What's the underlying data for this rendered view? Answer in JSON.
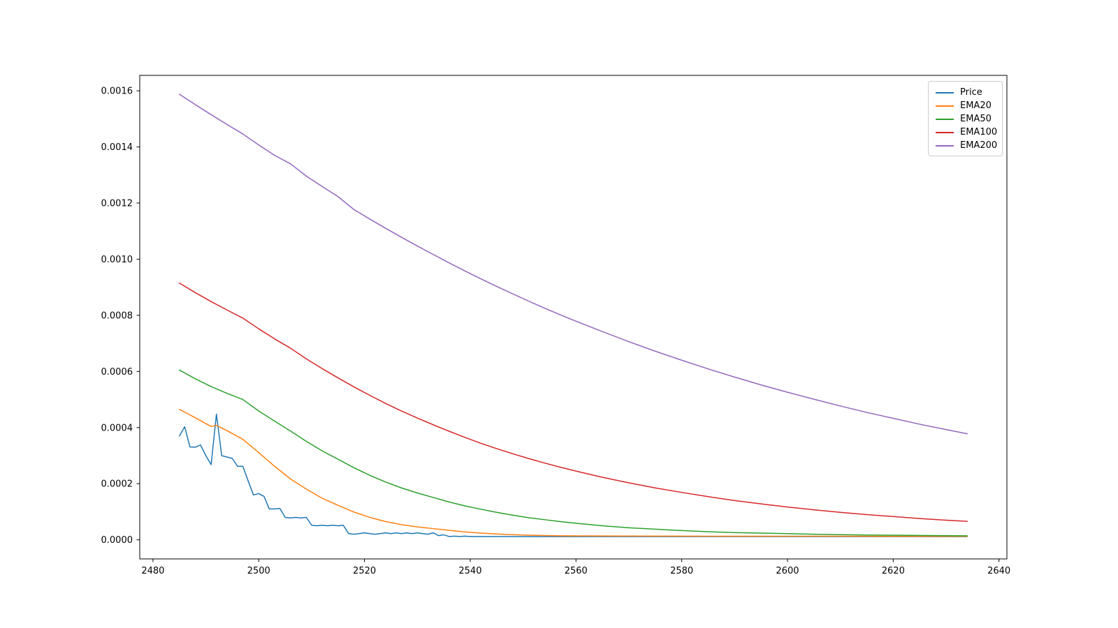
{
  "figure": {
    "background_color": "#ffffff",
    "plot_background_color": "#ffffff",
    "spine_color": "#000000",
    "tick_label_color": "#000000"
  },
  "legend": {
    "position": "upper right",
    "border_color": "#cccccc",
    "background_color": "#ffffff"
  },
  "chart_data": {
    "type": "line",
    "title": "",
    "xlabel": "",
    "ylabel": "",
    "grid": false,
    "legend_position": "upper right",
    "xlim": [
      2477.5,
      2641.5
    ],
    "ylim_micro": [
      -68,
      1655
    ],
    "y_scale": 1e-06,
    "x_ticks": [
      2480,
      2500,
      2520,
      2540,
      2560,
      2580,
      2600,
      2620,
      2640
    ],
    "x_tick_labels": [
      "2480",
      "2500",
      "2520",
      "2540",
      "2560",
      "2580",
      "2600",
      "2620",
      "2640"
    ],
    "y_ticks_micro": [
      0,
      200,
      400,
      600,
      800,
      1000,
      1200,
      1400,
      1600
    ],
    "y_tick_labels": [
      "0.0000",
      "0.0002",
      "0.0004",
      "0.0006",
      "0.0008",
      "0.0010",
      "0.0012",
      "0.0014",
      "0.0016"
    ],
    "line_width": 1.5,
    "series": [
      {
        "name": "Price",
        "color": "#1f77b4",
        "x": [
          2485,
          2486,
          2487,
          2488,
          2489,
          2490,
          2491,
          2492,
          2493,
          2494,
          2495,
          2496,
          2497,
          2498,
          2499,
          2500,
          2501,
          2502,
          2503,
          2504,
          2505,
          2506,
          2507,
          2508,
          2509,
          2510,
          2511,
          2512,
          2513,
          2514,
          2515,
          2516,
          2517,
          2518,
          2519,
          2520,
          2521,
          2522,
          2523,
          2524,
          2525,
          2526,
          2527,
          2528,
          2529,
          2530,
          2531,
          2532,
          2533,
          2534,
          2535,
          2536,
          2537,
          2538,
          2539,
          2540,
          2541,
          2542,
          2543,
          2544,
          2545,
          2550,
          2555,
          2560,
          2570,
          2580,
          2590,
          2600,
          2610,
          2620,
          2630,
          2634
        ],
        "y_micro": [
          370,
          403,
          331,
          330,
          338,
          300,
          268,
          448,
          300,
          295,
          290,
          262,
          262,
          210,
          160,
          165,
          155,
          110,
          110,
          112,
          80,
          78,
          80,
          78,
          80,
          52,
          50,
          52,
          50,
          52,
          50,
          52,
          22,
          20,
          22,
          25,
          22,
          20,
          22,
          25,
          22,
          25,
          22,
          25,
          22,
          25,
          22,
          20,
          25,
          15,
          18,
          12,
          13,
          12,
          13,
          12,
          12,
          12,
          12,
          12,
          12,
          11.5,
          11.5,
          11.5,
          11.5,
          11.5,
          11.5,
          11.5,
          11.5,
          11.5,
          11.5,
          11.5
        ]
      },
      {
        "name": "EMA20",
        "color": "#ff7f0e",
        "x": [
          2485,
          2488,
          2491,
          2492,
          2494,
          2497,
          2500,
          2503,
          2506,
          2509,
          2512,
          2515,
          2518,
          2521,
          2524,
          2527,
          2530,
          2533,
          2536,
          2539,
          2542,
          2545,
          2548,
          2551,
          2554,
          2557,
          2560,
          2565,
          2570,
          2580,
          2590,
          2600,
          2610,
          2620,
          2634
        ],
        "y_micro": [
          465,
          435,
          404,
          408,
          389,
          358,
          311,
          262,
          217,
          181,
          148,
          123,
          99,
          80,
          65,
          54,
          46,
          40,
          34,
          28,
          24,
          21,
          18.5,
          16.5,
          15.2,
          14.3,
          14,
          13.6,
          13.3,
          13,
          12.8,
          12.7,
          12.7,
          12.6,
          12.6
        ]
      },
      {
        "name": "EMA50",
        "color": "#2ca02c",
        "x": [
          2485,
          2488,
          2491,
          2494,
          2497,
          2500,
          2503,
          2506,
          2509,
          2512,
          2515,
          2518,
          2521,
          2524,
          2527,
          2530,
          2533,
          2536,
          2539,
          2542,
          2545,
          2548,
          2551,
          2554,
          2557,
          2560,
          2565,
          2570,
          2575,
          2580,
          2585,
          2590,
          2595,
          2600,
          2605,
          2610,
          2615,
          2620,
          2625,
          2630,
          2634
        ],
        "y_micro": [
          605,
          574,
          546,
          522,
          500,
          459,
          423,
          388,
          351,
          317,
          287,
          257,
          230,
          206,
          185,
          167,
          151,
          135,
          121,
          109,
          98,
          88,
          79,
          72,
          65,
          59,
          50,
          43,
          38,
          33,
          29,
          26,
          24,
          22,
          20,
          18.5,
          17.3,
          16.4,
          15.6,
          14.9,
          14.5
        ]
      },
      {
        "name": "EMA100",
        "color": "#d62728",
        "x": [
          2485,
          2488,
          2491,
          2494,
          2497,
          2500,
          2503,
          2506,
          2509,
          2512,
          2515,
          2518,
          2521,
          2524,
          2527,
          2530,
          2533,
          2536,
          2539,
          2542,
          2545,
          2548,
          2551,
          2554,
          2557,
          2560,
          2565,
          2570,
          2575,
          2580,
          2585,
          2590,
          2595,
          2600,
          2605,
          2610,
          2615,
          2620,
          2625,
          2630,
          2634
        ],
        "y_micro": [
          915,
          881,
          849,
          819,
          790,
          752,
          716,
          683,
          645,
          610,
          577,
          545,
          515,
          486,
          459,
          434,
          410,
          387,
          365,
          344,
          325,
          307,
          290,
          274,
          259,
          245,
          223,
          203,
          185,
          169,
          154,
          140,
          128,
          117,
          107,
          98,
          90,
          83,
          76,
          70,
          66
        ]
      },
      {
        "name": "EMA200",
        "color": "#9467bd",
        "x": [
          2485,
          2488,
          2491,
          2494,
          2497,
          2500,
          2503,
          2506,
          2509,
          2512,
          2515,
          2518,
          2521,
          2524,
          2527,
          2530,
          2533,
          2536,
          2539,
          2542,
          2545,
          2548,
          2551,
          2554,
          2557,
          2560,
          2565,
          2570,
          2575,
          2580,
          2585,
          2590,
          2595,
          2600,
          2605,
          2610,
          2615,
          2620,
          2625,
          2630,
          2634
        ],
        "y_micro": [
          1588,
          1551,
          1515,
          1480,
          1446,
          1407,
          1370,
          1340,
          1296,
          1259,
          1223,
          1177,
          1143,
          1110,
          1078,
          1047,
          1017,
          987,
          958,
          930,
          903,
          877,
          851,
          826,
          802,
          779,
          742,
          706,
          672,
          640,
          609,
          580,
          552,
          526,
          501,
          477,
          454,
          433,
          412,
          393,
          378
        ]
      }
    ]
  }
}
